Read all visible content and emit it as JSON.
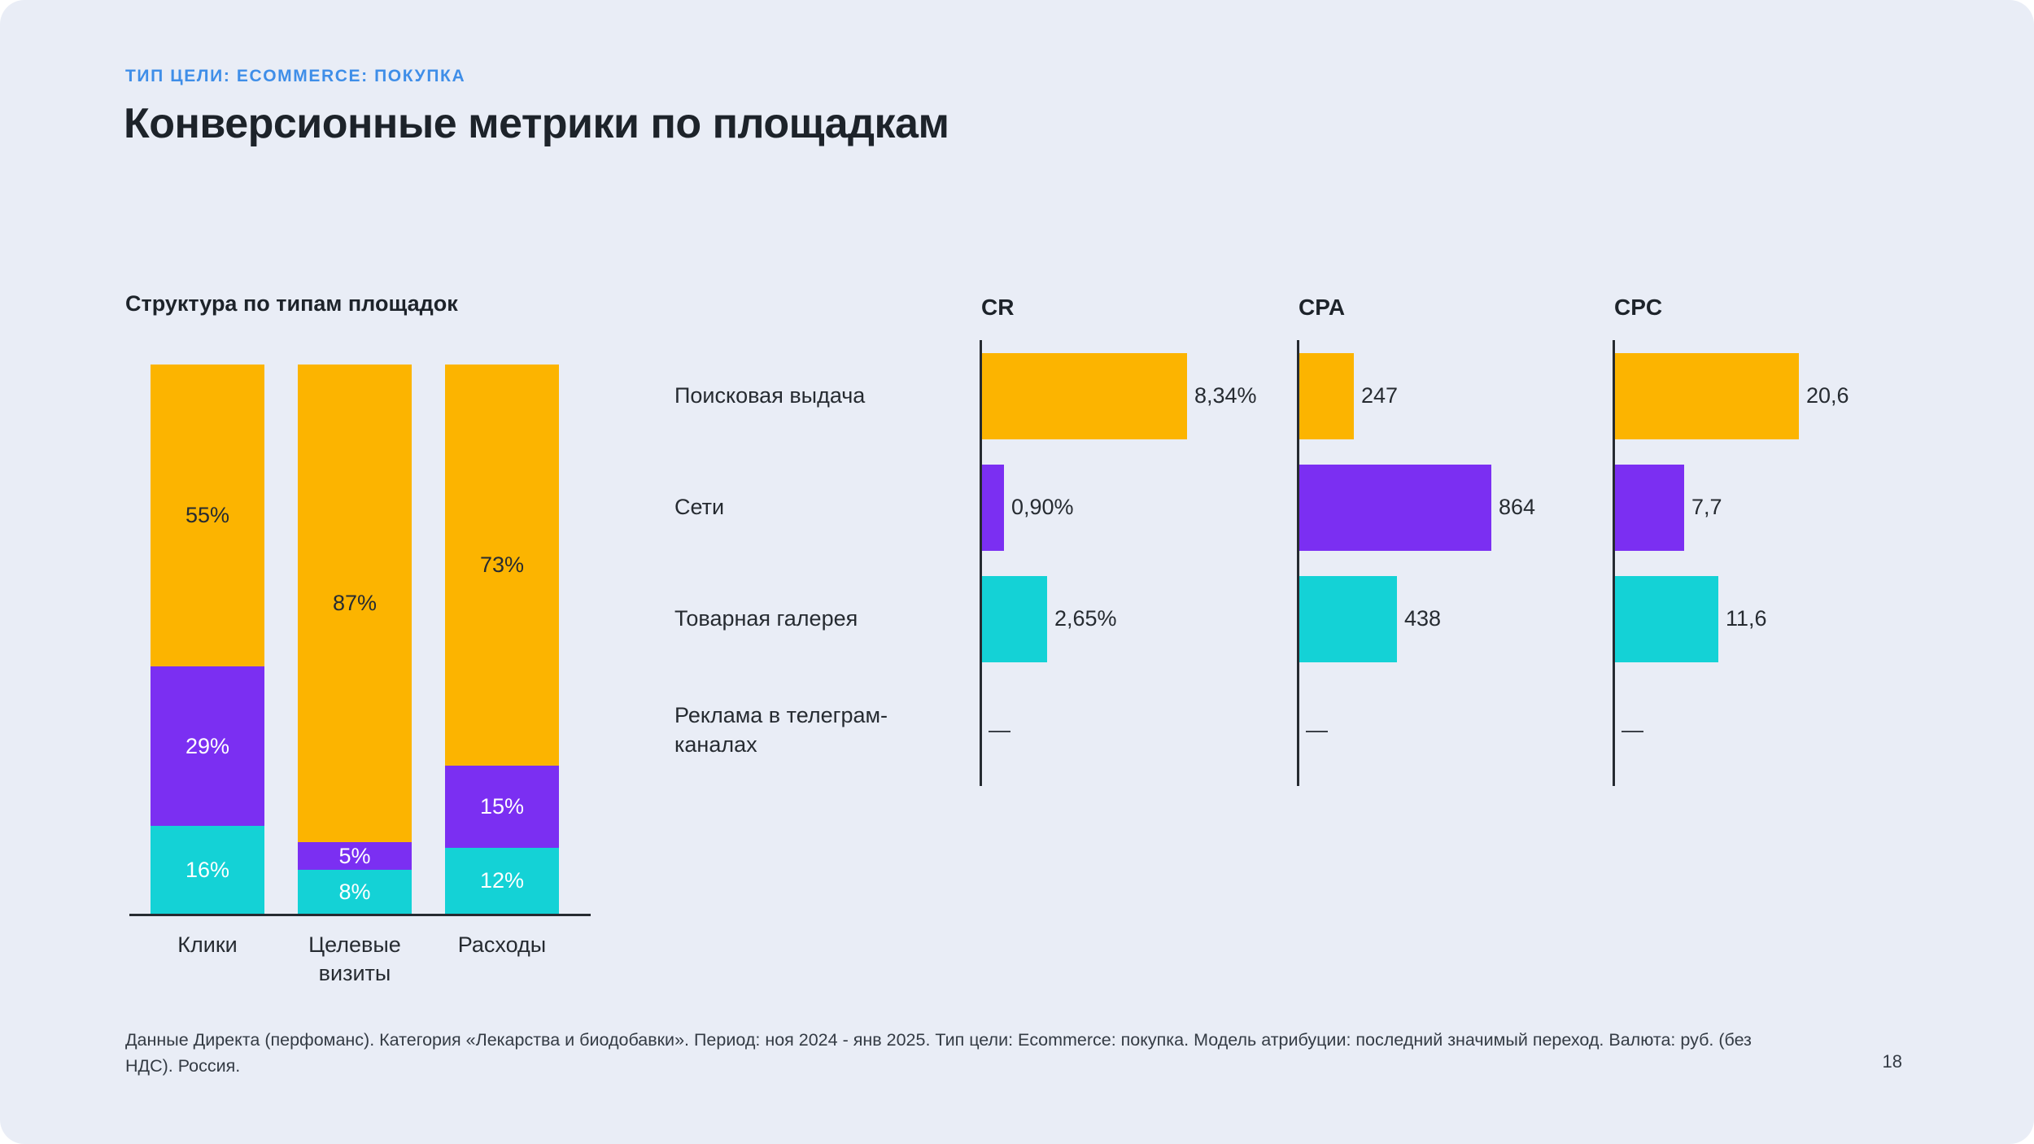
{
  "slide": {
    "eyebrow": "ТИП ЦЕЛИ: ECOMMERCE: ПОКУПКА",
    "title": "Конверсионные метрики по площадкам",
    "page_number": "18",
    "footnote": "Данные Директа (перфоманс). Категория «Лекарства и биодобавки». Период: ноя 2024 - янв 2025. Тип цели: Ecommerce: покупка. Модель атрибуции: последний значимый переход. Валюта: руб. (без НДС). Россия."
  },
  "colors": {
    "orange": "#fcb400",
    "purple": "#7b2ff2",
    "cyan": "#14d2d6",
    "accent_blue": "#3f8ee8",
    "axis": "#262b31",
    "background": "#e9edf6"
  },
  "chart_data": [
    {
      "type": "bar",
      "variant": "stacked-vertical-percent",
      "title": "Структура по типам площадок",
      "categories": [
        "Клики",
        "Целевые визиты",
        "Расходы"
      ],
      "series": [
        {
          "name": "Поисковая выдача",
          "color_key": "orange",
          "values": [
            55,
            87,
            73
          ]
        },
        {
          "name": "Сети",
          "color_key": "purple",
          "values": [
            29,
            5,
            15
          ]
        },
        {
          "name": "Товарная галерея",
          "color_key": "cyan",
          "values": [
            16,
            8,
            12
          ]
        }
      ],
      "value_suffix": "%",
      "ylim": [
        0,
        100
      ],
      "grid": false,
      "legend": false
    },
    {
      "type": "bar",
      "variant": "horizontal-grouped",
      "row_labels": [
        "Поисковая выдача",
        "Сети",
        "Товарная галерея",
        "Реклама в телеграм-каналах"
      ],
      "row_colors": [
        "orange",
        "purple",
        "cyan",
        null
      ],
      "groups": [
        {
          "title": "CR",
          "values": [
            8.34,
            0.9,
            2.65,
            null
          ],
          "labels": [
            "8,34%",
            "0,90%",
            "2,65%",
            "—"
          ]
        },
        {
          "title": "CPA",
          "values": [
            247,
            864,
            438,
            null
          ],
          "labels": [
            "247",
            "864",
            "438",
            "—"
          ]
        },
        {
          "title": "CPC",
          "values": [
            20.6,
            7.7,
            11.6,
            null
          ],
          "labels": [
            "20,6",
            "7,7",
            "11,6",
            "—"
          ]
        }
      ],
      "grid": false,
      "legend": false
    }
  ]
}
